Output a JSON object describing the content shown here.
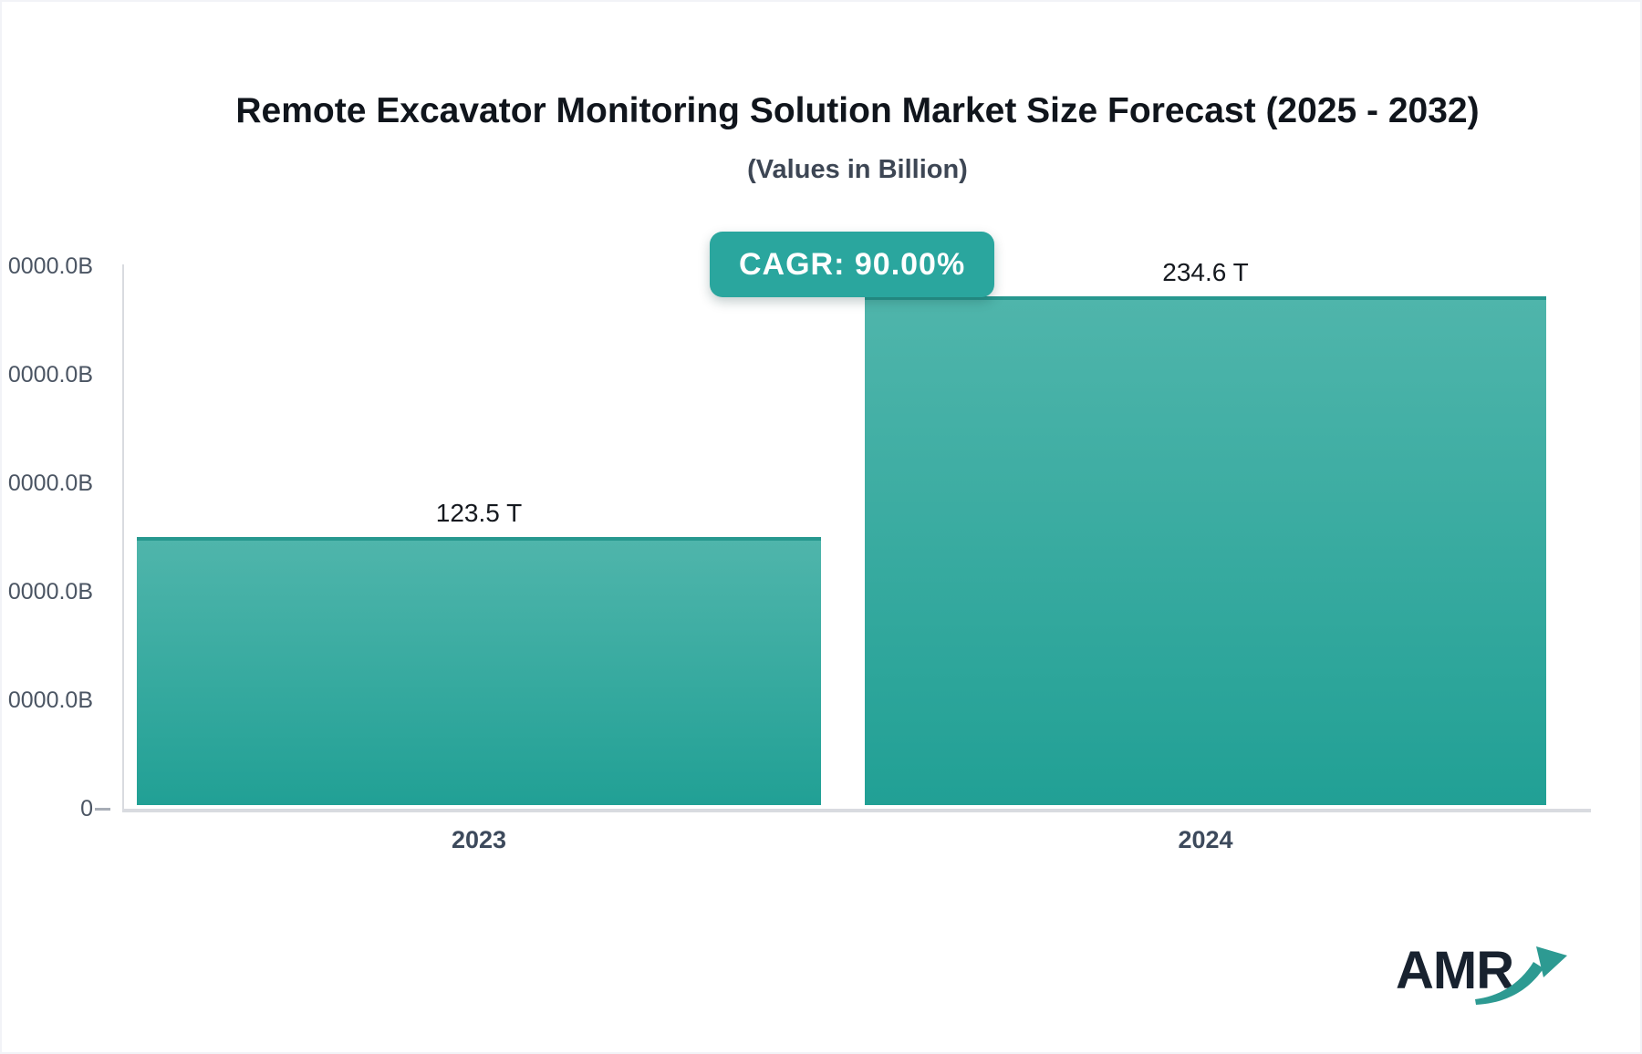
{
  "chart_data": {
    "type": "bar",
    "title": "Remote Excavator Monitoring Solution Market Size Forecast (2025 - 2032)",
    "subtitle": "(Values in Billion)",
    "annotation": "CAGR: 90.00%",
    "categories": [
      "2023",
      "2024"
    ],
    "values": [
      123500,
      234600
    ],
    "value_labels": [
      "123.5 T",
      "234.6 T"
    ],
    "y_ticks": [
      "0000.0B",
      "0000.0B",
      "0000.0B",
      "0000.0B",
      "0000.0B",
      "0"
    ],
    "y_max": 250000,
    "ylim": [
      0,
      250000
    ],
    "y_tick_step": 50000,
    "grid": false,
    "legend": false
  },
  "logo": {
    "text": "AMR"
  },
  "colors": {
    "title-text": "#10151c",
    "subtitle-text": "#3d4654",
    "badge-bg": "#2aa69e",
    "bar-top": "#4fb5ab",
    "bar-bottom": "#21a095",
    "bar-stroke": "#27988f",
    "axis-line": "#d9dbe0",
    "tick-text": "#4b5563",
    "axis-label": "#3d4a5c",
    "value-text": "#15191f",
    "logo-navy": "#18222f",
    "logo-teal": "#2d9a92"
  }
}
